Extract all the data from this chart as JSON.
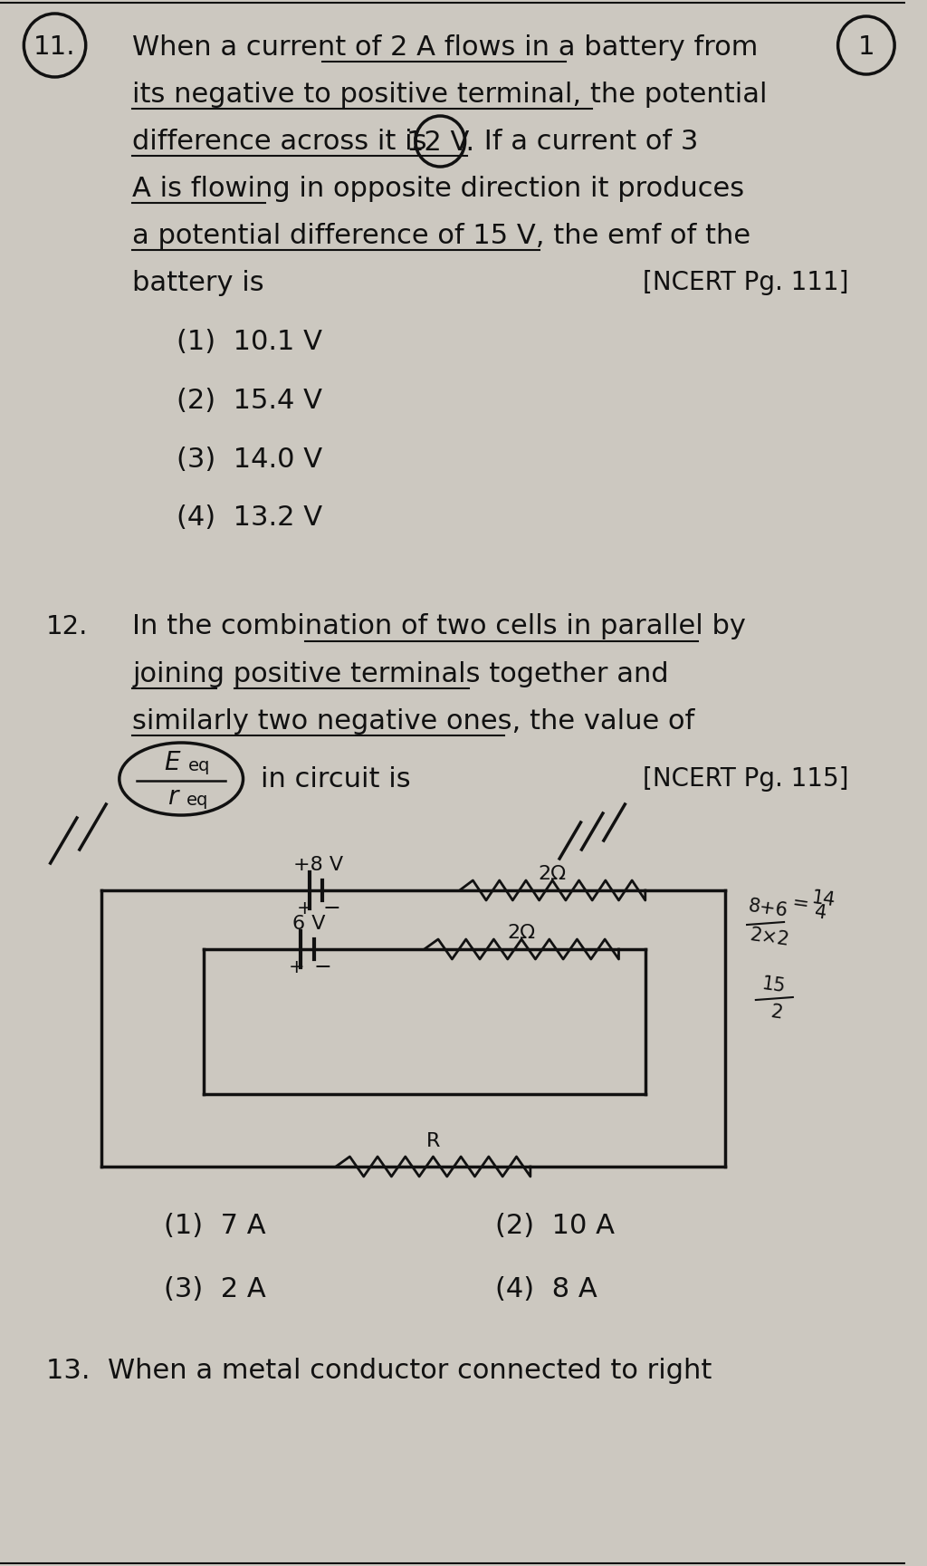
{
  "bg_color": "#ccc8c0",
  "text_color": "#111111",
  "page_width": 10.24,
  "page_height": 17.29,
  "q11_number": "11.",
  "q11_text_line1": "When a current of 2 A flows in a battery from",
  "q11_text_line2": "its negative to positive terminal, the potential",
  "q11_text_line3a": "difference across it is ",
  "q11_12v": "12 V.",
  "q11_text_line3b": " If a current of 3",
  "q11_text_line4": "A is flowing in opposite direction it produces",
  "q11_text_line5": "a potential difference of 15 V, the emf of the",
  "q11_text_line6": "battery is",
  "q11_ncert": "[NCERT Pg. 111]",
  "q11_opt1": "(1)  10.1 V",
  "q11_opt2": "(2)  15.4 V",
  "q11_opt3": "(3)  14.0 V",
  "q11_opt4": "(4)  13.2 V",
  "q12_number": "12.",
  "q12_text_line1": "In the combination of two cells in parallel by",
  "q12_text_line2": "joining positive terminals together and",
  "q12_text_line3": "similarly two negative ones, the value of",
  "q12_text_after": "in circuit is",
  "q12_ncert": "[NCERT Pg. 115]",
  "q12_opt1": "(1)  7 A",
  "q12_opt2": "(2)  10 A",
  "q12_opt3": "(3)  2 A",
  "q12_opt4": "(4)  8 A",
  "q13_text": "13.  When a metal conductor connected to right",
  "circuit_8v": "+8 V",
  "circuit_6v": "6 V",
  "circuit_2ohm_top": "2Ω",
  "circuit_2ohm_bot": "2Ω",
  "circuit_R": "R"
}
